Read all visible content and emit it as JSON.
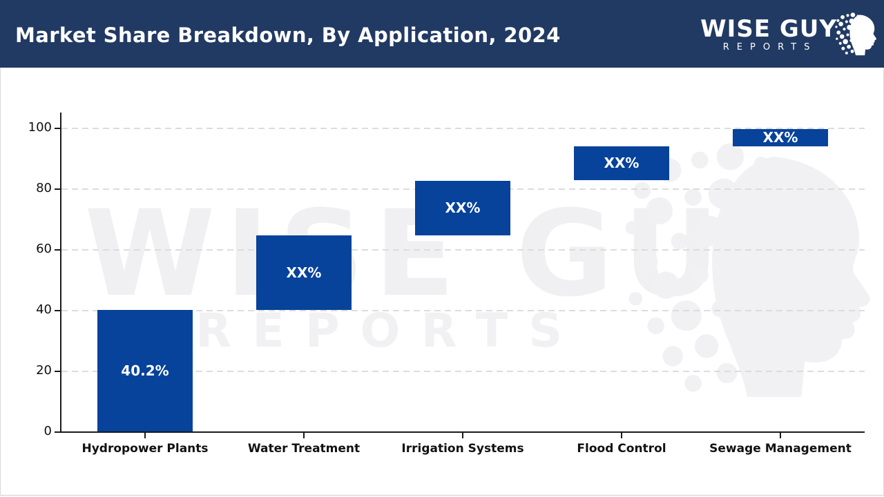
{
  "header": {
    "title": "Market Share Breakdown, By Application, 2024",
    "logo": {
      "line1": "WISE GUY",
      "line2": "REPORTS"
    }
  },
  "watermark": {
    "line1": "WISE GUY",
    "line2": "REPORTS"
  },
  "chart_data": {
    "type": "bar",
    "subtype": "waterfall",
    "title": "Market Share Breakdown, By Application, 2024",
    "categories": [
      "Hydropower Plants",
      "Water Treatment",
      "Irrigation Systems",
      "Flood Control",
      "Sewage Management"
    ],
    "segments": [
      {
        "category": "Hydropower Plants",
        "start": 0,
        "end": 40.2,
        "label": "40.2%"
      },
      {
        "category": "Water Treatment",
        "start": 40.2,
        "end": 64.8,
        "label": "XX%"
      },
      {
        "category": "Irrigation Systems",
        "start": 64.8,
        "end": 82.7,
        "label": "XX%"
      },
      {
        "category": "Flood Control",
        "start": 83.0,
        "end": 94.1,
        "label": "XX%"
      },
      {
        "category": "Sewage Management",
        "start": 94.1,
        "end": 99.8,
        "label": "XX%"
      }
    ],
    "y_ticks": [
      0,
      20,
      40,
      60,
      80,
      100
    ],
    "ylim": [
      0,
      105
    ],
    "xlabel": "",
    "ylabel": "",
    "grid": "horizontal-dashed",
    "legend": "none",
    "colors": {
      "bar": "#07429b",
      "bar_label": "#ffffff",
      "axis": "#1a1a1a",
      "grid_line": "#dcdcdc",
      "header_bg": "#213a63",
      "watermark": "#f0f0f2"
    }
  }
}
